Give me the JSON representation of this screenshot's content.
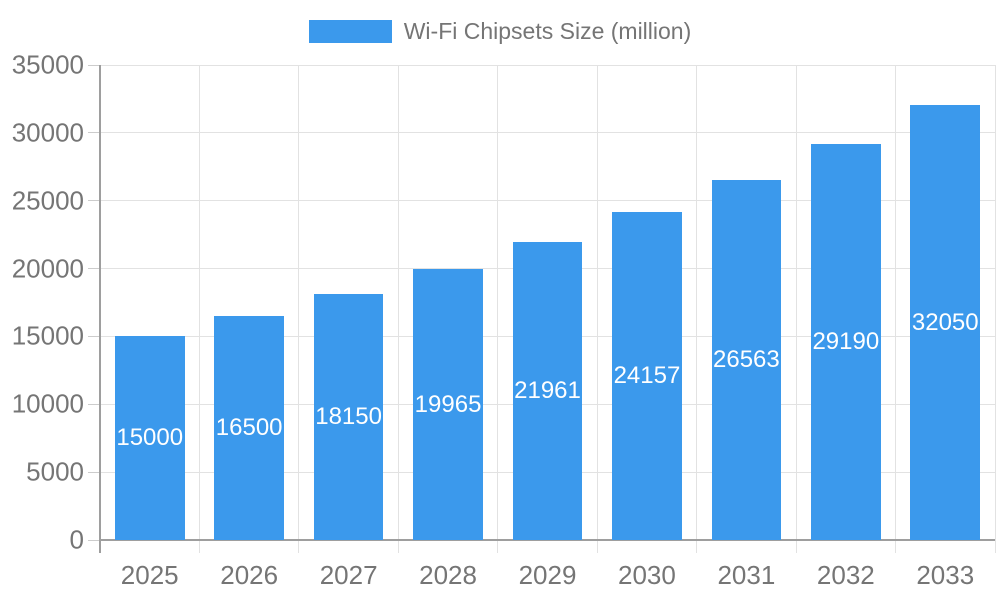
{
  "chart_data": {
    "type": "bar",
    "title": "Wi-Fi Chipsets Size (million)",
    "legend": {
      "label": "Wi-Fi Chipsets Size (million)",
      "position": "top-center"
    },
    "categories": [
      "2025",
      "2026",
      "2027",
      "2028",
      "2029",
      "2030",
      "2031",
      "2032",
      "2033"
    ],
    "values": [
      15000,
      16500,
      18150,
      19965,
      21961,
      24157,
      26563,
      29190,
      32050
    ],
    "bar_value_labels": [
      "15000",
      "16500",
      "18150",
      "19965",
      "21961",
      "24157",
      "26563",
      "29190",
      "32050"
    ],
    "xlabel": "",
    "ylabel": "",
    "ylim": [
      0,
      35000
    ],
    "ytick_step": 5000,
    "yticks": [
      "0",
      "5000",
      "10000",
      "15000",
      "20000",
      "25000",
      "30000",
      "35000"
    ],
    "grid": true,
    "colors": {
      "bar": "#3B99EC",
      "bar_value_text": "#ffffff",
      "axis_text": "#757575",
      "gridline": "#e2e2e2",
      "tick": "#cccccc",
      "axis_line": "#9e9e9e",
      "background": "#ffffff"
    }
  }
}
